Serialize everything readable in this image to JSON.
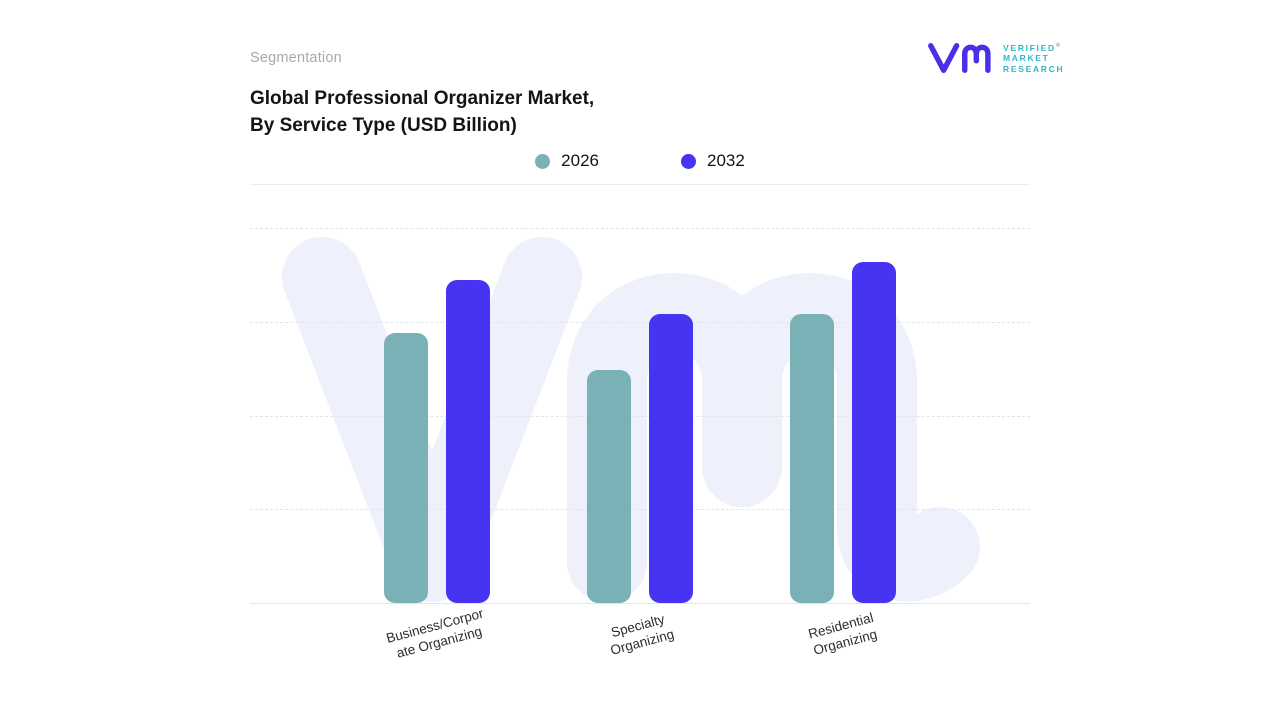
{
  "header": {
    "segmentation_label": "Segmentation",
    "logo": {
      "brand_lines": [
        "VERIFIED",
        "MARKET",
        "RESEARCH"
      ],
      "registered_mark": "®",
      "glyph_color": "#4a2fe9",
      "text_color": "#2eb9c7"
    }
  },
  "title": {
    "line1": "Global Professional Organizer Market,",
    "line2": "By Service Type (USD Billion)"
  },
  "chart_data": {
    "type": "bar",
    "title": "Global Professional Organizer Market, By Service Type (USD Billion)",
    "categories": [
      "Business/Corporate Organizing",
      "Specialty Organizing",
      "Residential Organizing"
    ],
    "category_label_lines": [
      [
        "Business/Corpor",
        "ate Organizing"
      ],
      [
        "Specialty",
        "Organizing"
      ],
      [
        "Residential",
        "Organizing"
      ]
    ],
    "series": [
      {
        "name": "2026",
        "color": "#7ab1b6",
        "values": [
          72,
          62,
          77
        ]
      },
      {
        "name": "2032",
        "color": "#4733f2",
        "values": [
          86,
          77,
          91
        ]
      }
    ],
    "ylim": [
      0,
      100
    ],
    "y_axis_tick_labels": [],
    "grid": "horizontal-dashed",
    "legend_position": "top-center",
    "note": "No numeric axis labels are shown in the source image; values are relative bar heights (0-100 scale) estimated from gridlines.",
    "watermark_glyph": "vm"
  },
  "colors": {
    "teal": "#7ab1b6",
    "blue": "#4733f2",
    "watermark": "#eef0fb",
    "gridline": "#e3e5ea",
    "divider": "#ededf1",
    "title_text": "#141418",
    "muted_text": "#a6a9ae",
    "axis_label_text": "#2c2c30"
  }
}
